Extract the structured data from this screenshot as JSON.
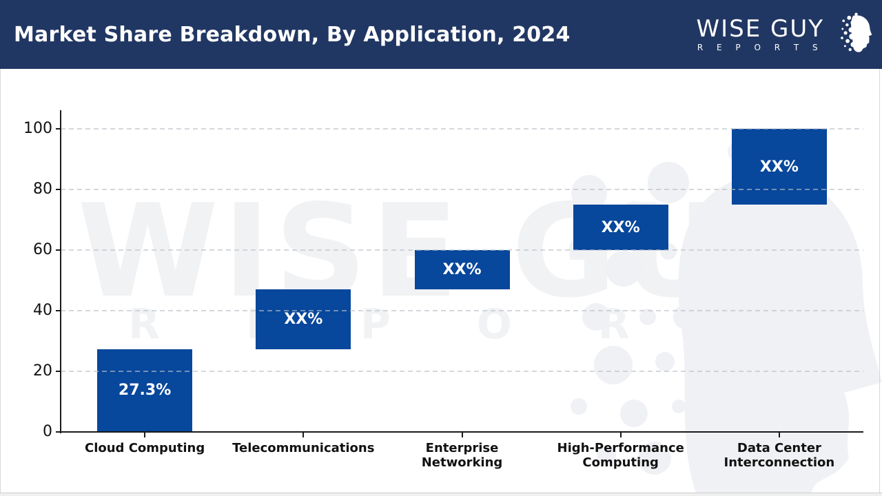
{
  "header": {
    "title": "Market Share Breakdown, By Application, 2024",
    "logo": {
      "name": "WISE GUY",
      "sub": "R E P O R T S"
    }
  },
  "watermark": {
    "name": "WISE GUY",
    "sub": "R E P O R T S"
  },
  "colors": {
    "header_bg": "#213763",
    "bar": "#07479c",
    "bar_label": "#ffffff",
    "axis": "#1a1a1a",
    "grid": "#bfc4cc",
    "watermark": "#f1f2f4"
  },
  "chart_data": {
    "type": "bar",
    "subtype": "waterfall",
    "title": "Market Share Breakdown, By Application, 2024",
    "categories": [
      "Cloud Computing",
      "Telecommunications",
      "Enterprise\nNetworking",
      "High-Performance\nComputing",
      "Data Center\nInterconnection"
    ],
    "segments": [
      {
        "category": "Cloud Computing",
        "start": 0,
        "end": 27.3,
        "label": "27.3%"
      },
      {
        "category": "Telecommunications",
        "start": 27.3,
        "end": 47,
        "label": "XX%"
      },
      {
        "category": "Enterprise Networking",
        "start": 47,
        "end": 60,
        "label": "XX%"
      },
      {
        "category": "High-Performance Computing",
        "start": 60,
        "end": 75,
        "label": "XX%"
      },
      {
        "category": "Data Center Interconnection",
        "start": 75,
        "end": 100,
        "label": "XX%"
      }
    ],
    "yticks": [
      0,
      20,
      40,
      60,
      80,
      100
    ],
    "ylim": [
      0,
      105
    ],
    "xlabel": "",
    "ylabel": "",
    "grid": "horizontal-dashed",
    "legend": false
  }
}
